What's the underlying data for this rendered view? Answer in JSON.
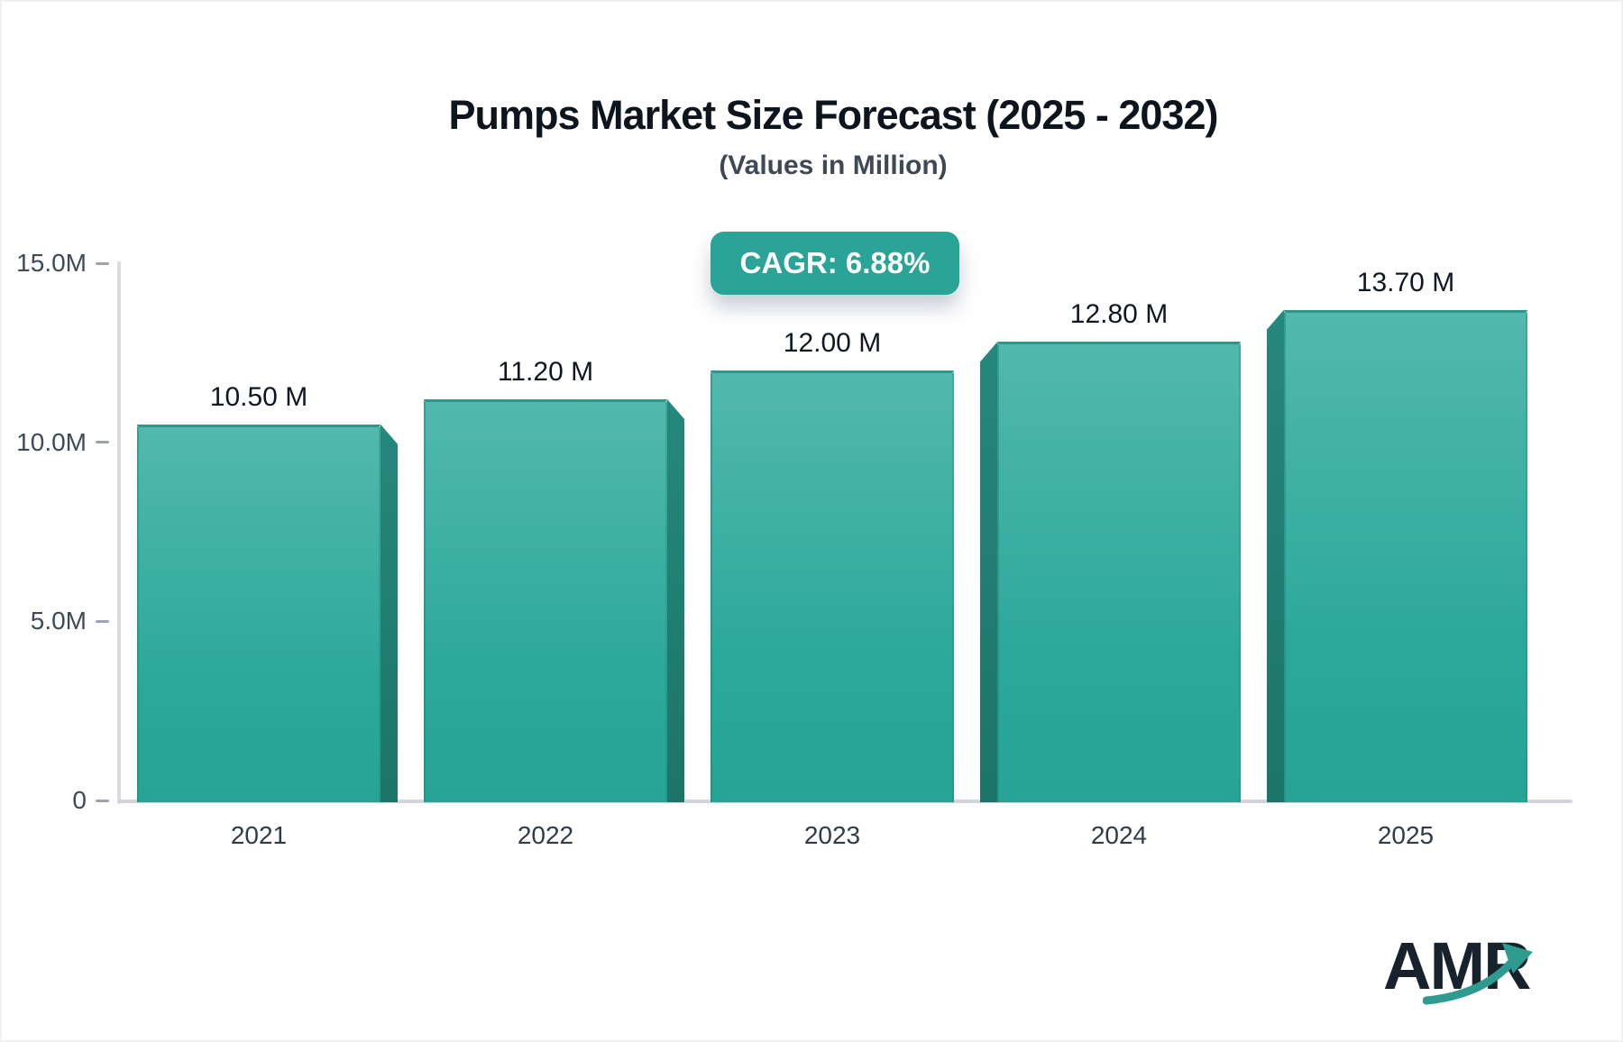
{
  "chart_data": {
    "type": "bar",
    "title": "Pumps Market Size Forecast (2025 - 2032)",
    "subtitle": "(Values in Million)",
    "annotation": "CAGR: 6.88%",
    "categories": [
      "2021",
      "2022",
      "2023",
      "2024",
      "2025"
    ],
    "values": [
      10.5,
      11.2,
      12.0,
      12.8,
      13.7
    ],
    "value_labels": [
      "10.50 M",
      "11.20 M",
      "12.00 M",
      "12.80 M",
      "13.70 M"
    ],
    "ylim": [
      0,
      15
    ],
    "yticks": [
      {
        "v": 0,
        "label": "0"
      },
      {
        "v": 5,
        "label": "5.0M"
      },
      {
        "v": 10,
        "label": "10.0M"
      },
      {
        "v": 15,
        "label": "15.0M"
      }
    ],
    "grid": false,
    "legend": false,
    "bar_style": "3d-extruded",
    "colors": {
      "bar_top": "#53b8ae",
      "bar_bottom": "#27a496",
      "bar_side": "#207d72",
      "accent_badge": "#2aa497",
      "axis_line": "#d9dbe0",
      "text_dark": "#0c141d"
    }
  },
  "logo": {
    "text": "AMR",
    "arrow_icon": "growth-arrow-icon",
    "text_color": "#17222c",
    "arrow_color": "#2f9a8f"
  }
}
